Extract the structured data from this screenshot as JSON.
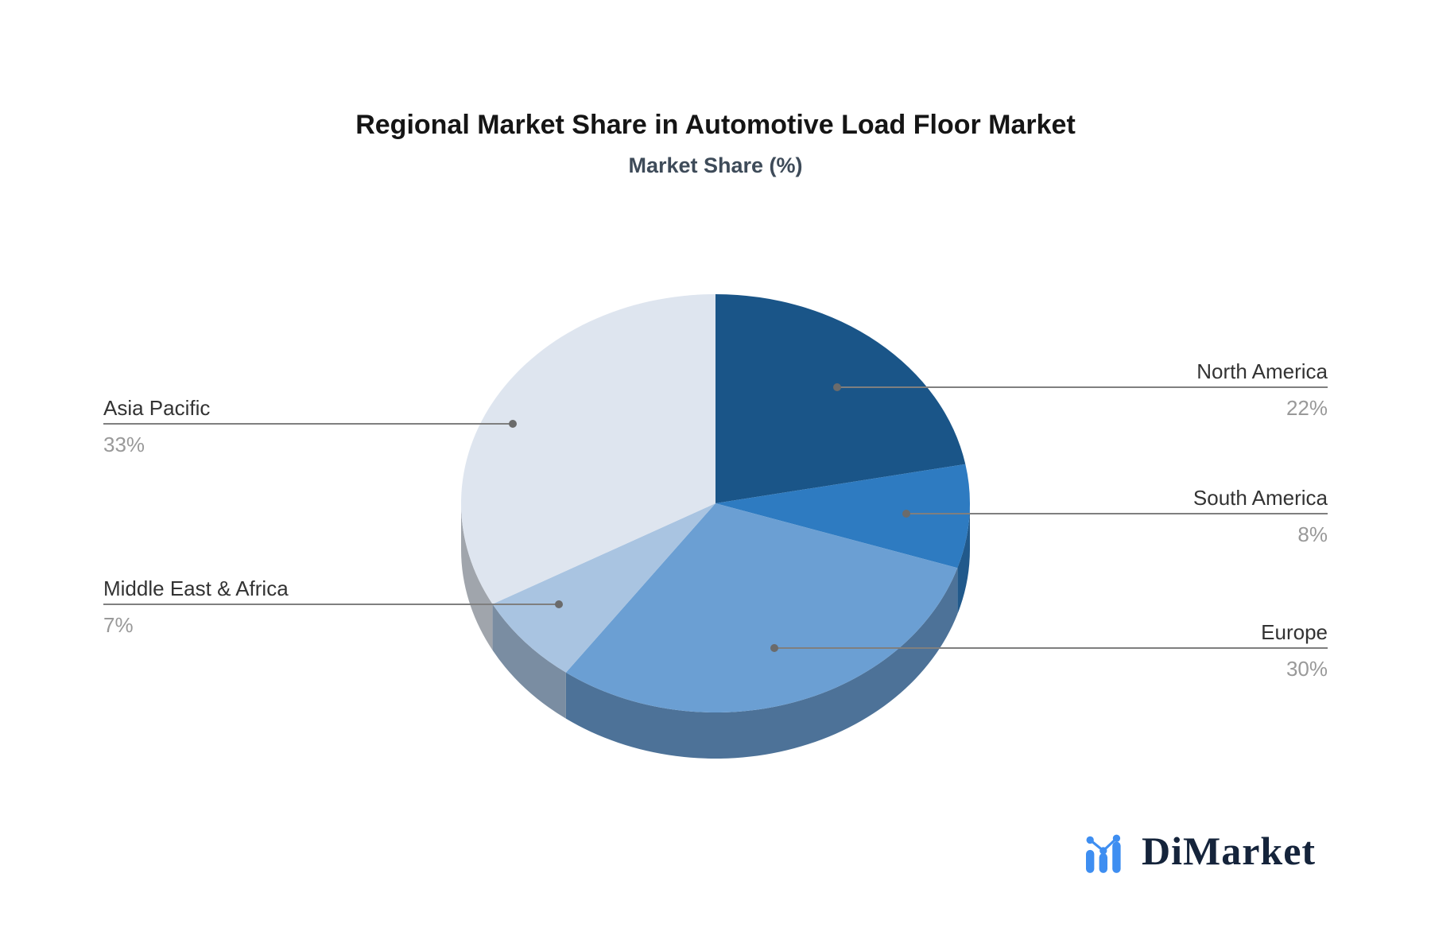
{
  "header": {
    "title": "Regional Market Share in Automotive Load Floor Market",
    "subtitle": "Market Share (%)"
  },
  "chart_data": {
    "type": "pie",
    "title": "Regional Market Share in Automotive Load Floor Market",
    "subtitle": "Market Share (%)",
    "unit": "%",
    "effect": "3d",
    "start_angle_deg": 0,
    "direction": "clockwise",
    "legend_position": "connector-labels-around-pie",
    "slices": [
      {
        "label": "North America",
        "value": 22,
        "pct_label": "22%",
        "color": "#1A5588"
      },
      {
        "label": "South America",
        "value": 8,
        "pct_label": "8%",
        "color": "#2E7BC1"
      },
      {
        "label": "Europe",
        "value": 30,
        "pct_label": "30%",
        "color": "#6B9FD3"
      },
      {
        "label": "Middle East & Africa",
        "value": 7,
        "pct_label": "7%",
        "color": "#A9C4E1"
      },
      {
        "label": "Asia Pacific",
        "value": 33,
        "pct_label": "33%",
        "color": "#DEE5EF"
      }
    ],
    "style": {
      "leader_line_color": "#7F7F7F",
      "leader_dot_color": "#6B6B6B",
      "label_color": "#333333",
      "pct_color": "#999999",
      "title_color": "#151515",
      "subtitle_color": "#3E4B59"
    }
  },
  "branding": {
    "logo_text": "DiMarket",
    "logo_icon": "bar-line-chart-icon",
    "logo_text_color": "#15243B",
    "logo_icon_color": "#3E8EF1"
  }
}
